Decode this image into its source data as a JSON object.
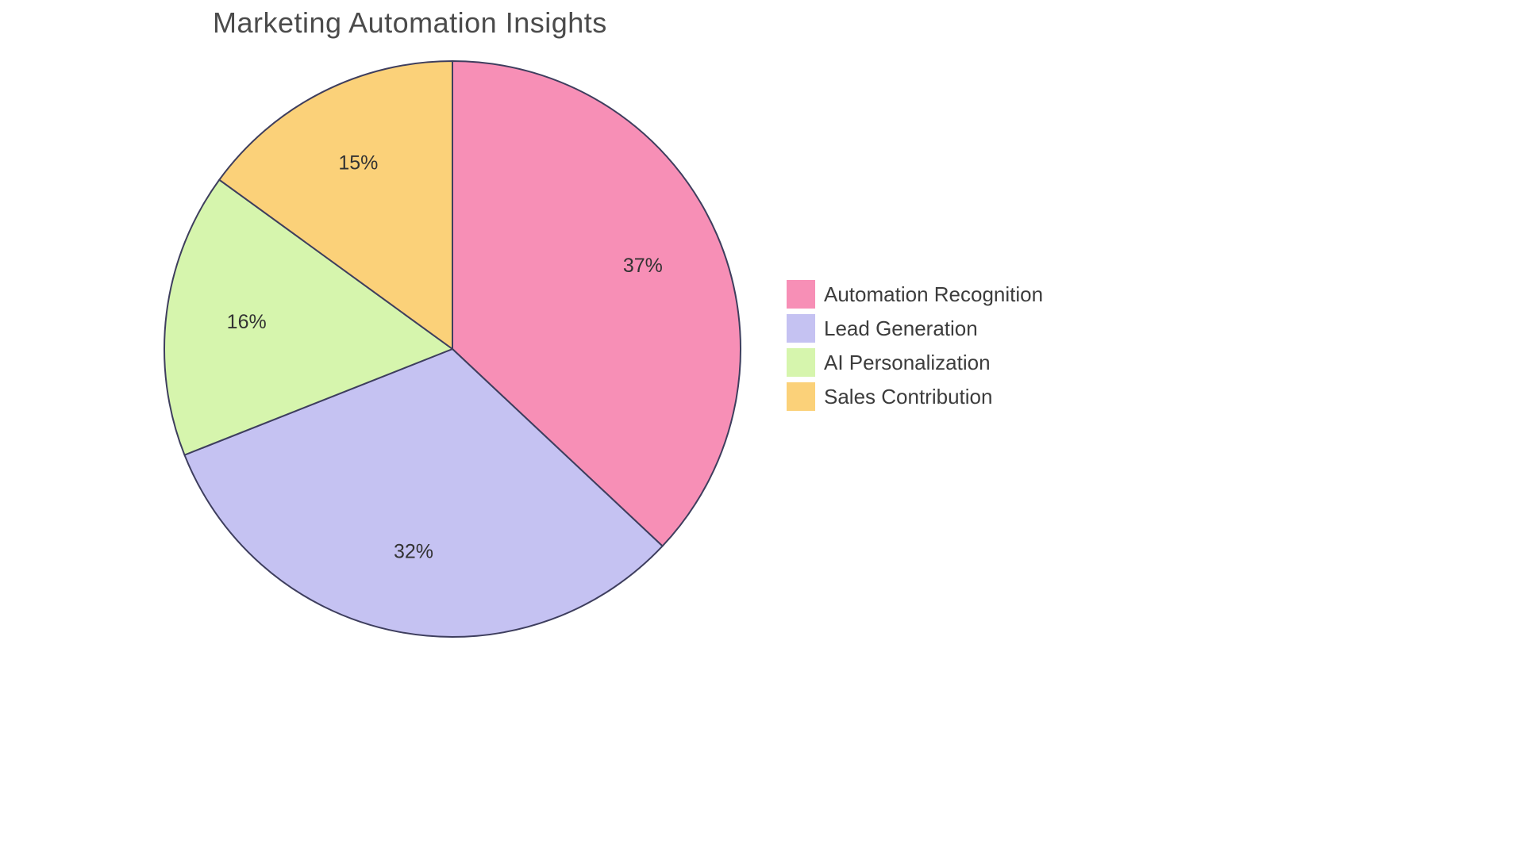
{
  "title": "Marketing Automation Insights",
  "chart_data": {
    "type": "pie",
    "title": "Marketing Automation Insights",
    "labels": [
      "Automation Recognition",
      "Lead Generation",
      "AI Personalization",
      "Sales Contribution"
    ],
    "values": [
      37,
      32,
      16,
      15
    ],
    "percent_labels": [
      "37%",
      "32%",
      "16%",
      "15%"
    ],
    "colors": [
      "#F78FB6",
      "#C5C2F2",
      "#D6F5AD",
      "#FBD179"
    ],
    "stroke_color": "#3E3E5E",
    "stroke_width": 2,
    "start_angle_deg": 0,
    "direction": "clockwise",
    "legend_position": "right",
    "pct_distance": 0.72,
    "grid": false
  }
}
